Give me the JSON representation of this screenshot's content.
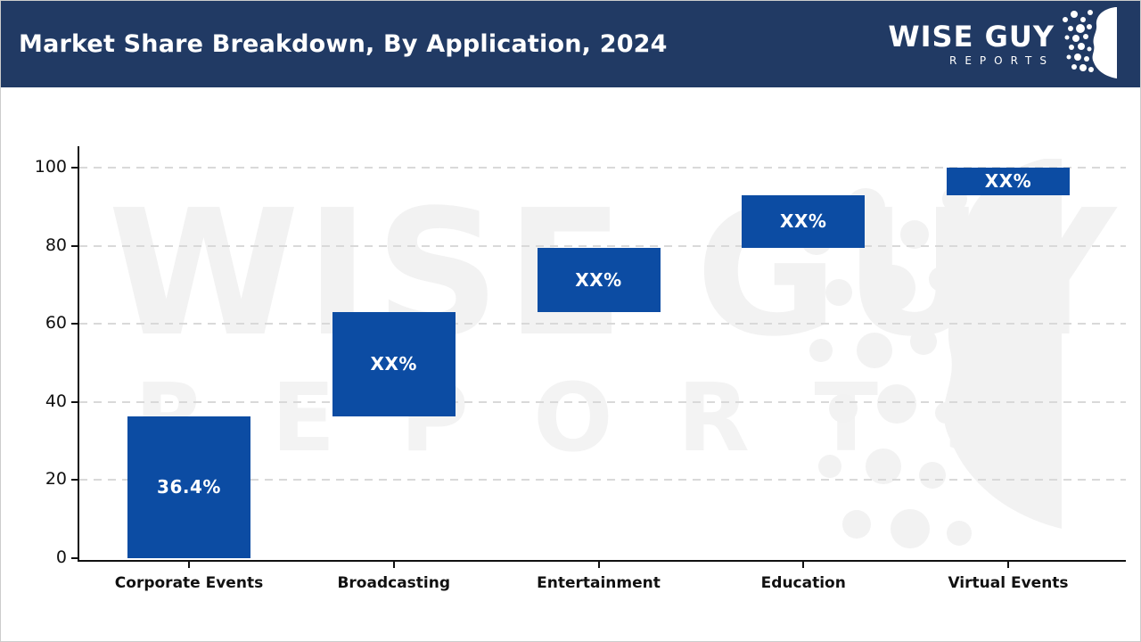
{
  "header": {
    "title": "Market Share Breakdown, By Application, 2024",
    "logo": {
      "line1": "WISE GUY",
      "line2": "REPORTS"
    }
  },
  "watermark": {
    "line1": "WISE GUY",
    "line2": "R E P O R T S"
  },
  "colors": {
    "header_bg": "#213A64",
    "bar_fill": "#0C4CA3",
    "bar_label_text": "#FFFFFF",
    "axis_text": "#111111",
    "gridline": "#D9D9D9",
    "watermark_text": "#F2F2F2",
    "page_border": "#CCCCCC"
  },
  "chart_data": {
    "type": "bar",
    "subtype": "waterfall",
    "title": "Market Share Breakdown, By Application, 2024",
    "categories": [
      "Corporate Events",
      "Broadcasting",
      "Entertainment",
      "Education",
      "Virtual Events"
    ],
    "segments": [
      {
        "category": "Corporate Events",
        "start": 0,
        "end": 36.4,
        "label": "36.4%"
      },
      {
        "category": "Broadcasting",
        "start": 36.4,
        "end": 63,
        "label": "XX%"
      },
      {
        "category": "Entertainment",
        "start": 63,
        "end": 79.5,
        "label": "XX%"
      },
      {
        "category": "Education",
        "start": 79.5,
        "end": 93,
        "label": "XX%"
      },
      {
        "category": "Virtual Events",
        "start": 93,
        "end": 100,
        "label": "XX%"
      }
    ],
    "yticks": [
      0,
      20,
      40,
      60,
      80,
      100
    ],
    "ylim": [
      0,
      106
    ],
    "xlabel": "",
    "ylabel": "",
    "grid": "dashed-horizontal",
    "legend": "none"
  }
}
